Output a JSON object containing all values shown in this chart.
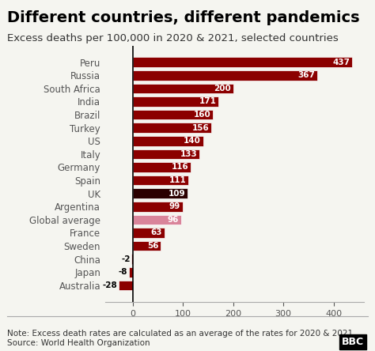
{
  "title": "Different countries, different pandemics",
  "subtitle": "Excess deaths per 100,000 in 2020 & 2021, selected countries",
  "note": "Note: Excess death rates are calculated as an average of the rates for 2020 & 2021",
  "source": "Source: World Health Organization",
  "countries": [
    "Peru",
    "Russia",
    "South Africa",
    "India",
    "Brazil",
    "Turkey",
    "US",
    "Italy",
    "Germany",
    "Spain",
    "UK",
    "Argentina",
    "Global average",
    "France",
    "Sweden",
    "China",
    "Japan",
    "Australia"
  ],
  "values": [
    437,
    367,
    200,
    171,
    160,
    156,
    140,
    133,
    116,
    111,
    109,
    99,
    96,
    63,
    56,
    -2,
    -8,
    -28
  ],
  "bar_colors": [
    "#8B0000",
    "#8B0000",
    "#8B0000",
    "#8B0000",
    "#8B0000",
    "#8B0000",
    "#8B0000",
    "#8B0000",
    "#8B0000",
    "#8B0000",
    "#2B0000",
    "#8B0000",
    "#D9849A",
    "#8B0000",
    "#8B0000",
    "#8B0000",
    "#8B0000",
    "#8B0000"
  ],
  "label_colors": [
    "white",
    "white",
    "white",
    "white",
    "white",
    "white",
    "white",
    "white",
    "white",
    "white",
    "white",
    "white",
    "white",
    "white",
    "white",
    "black",
    "black",
    "black"
  ],
  "background_color": "#f5f5f0",
  "xlim": [
    -55,
    460
  ],
  "title_fontsize": 14,
  "subtitle_fontsize": 9.5,
  "note_fontsize": 7.5,
  "source_fontsize": 7.5
}
